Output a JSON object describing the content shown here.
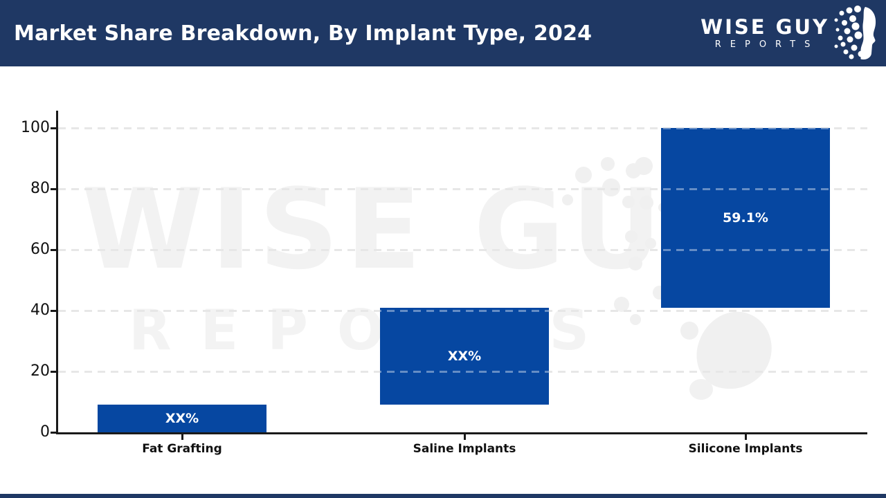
{
  "header": {
    "title": "Market Share Breakdown, By Implant Type, 2024",
    "logo": {
      "line1": "WISE GUY",
      "line2": "REPORTS"
    }
  },
  "watermark": {
    "line1": "WISE GUY",
    "line2": "REPORTS"
  },
  "chart_data": {
    "type": "bar",
    "variant": "stacked-percentage-waterfall",
    "title": "Market Share Breakdown, By Implant Type, 2024",
    "categories": [
      "Fat Grafting",
      "Saline Implants",
      "Silicone Implants"
    ],
    "segments": [
      {
        "category": "Fat Grafting",
        "start": 0,
        "end": 9,
        "value_label": "XX%"
      },
      {
        "category": "Saline Implants",
        "start": 9,
        "end": 41,
        "value_label": "XX%"
      },
      {
        "category": "Silicone Implants",
        "start": 41,
        "end": 100,
        "value_label": "59.1%"
      }
    ],
    "yticks": [
      0,
      20,
      40,
      60,
      80,
      100
    ],
    "ylim": [
      0,
      100
    ],
    "xlabel": "",
    "ylabel": "",
    "grid": "horizontal-dashed",
    "legend": "none",
    "bar_color": "#0647A1",
    "value_label_color": "#ffffff"
  },
  "colors": {
    "header_bg": "#1F3864",
    "footer_bg": "#1F3864",
    "axis": "#1a1a1a",
    "grid": "#d9d9d9"
  }
}
